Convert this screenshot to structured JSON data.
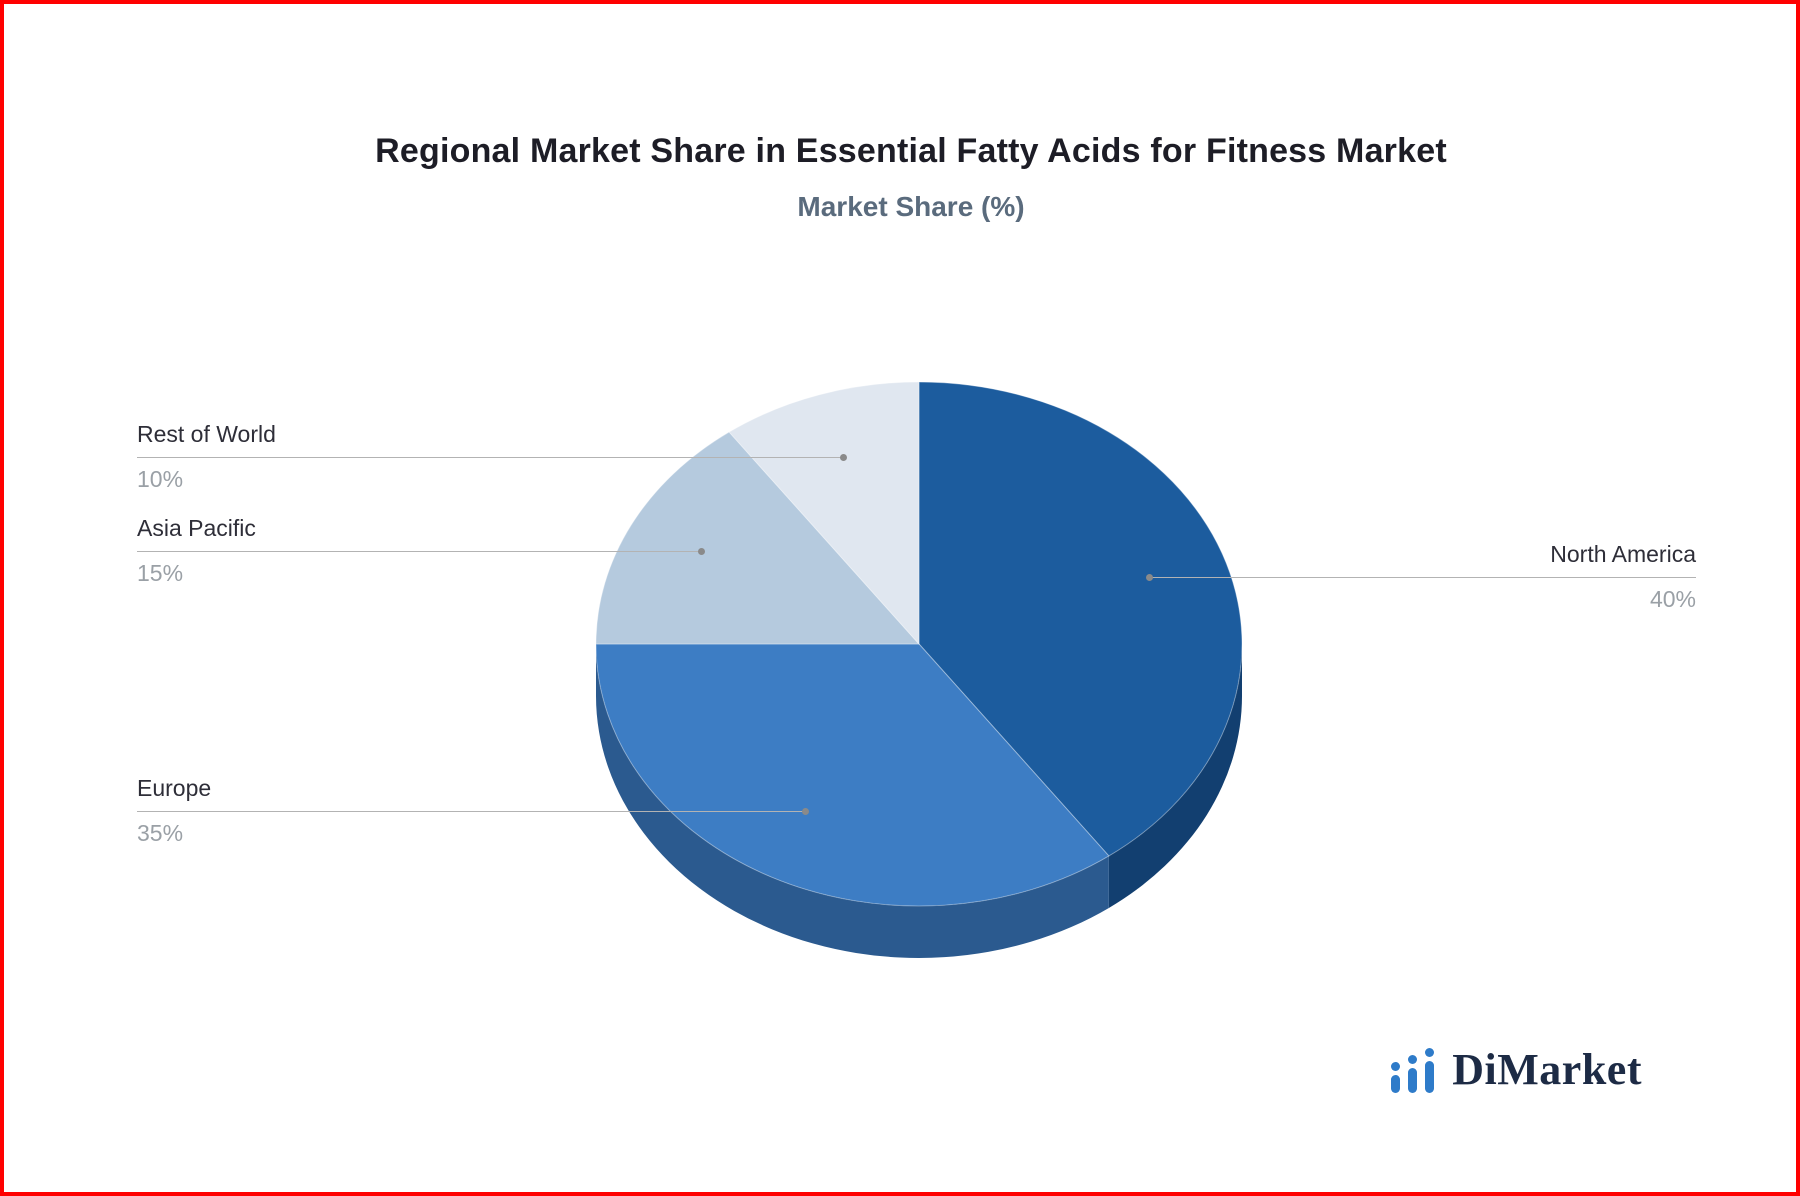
{
  "theme": {
    "accent_red": "#ff0000",
    "title_color": "#1d1d26",
    "subtitle_color": "#5a6b7d",
    "label_color": "#2e2e38",
    "pct_color": "#9aa0a6",
    "line_color": "#b3b3b3",
    "dot_color": "#8a8a8a",
    "background": "#ffffff",
    "logo_blue": "#2e7bc9",
    "logo_text_color": "#1d2b45"
  },
  "chart_data": {
    "type": "pie",
    "title": "Regional Market Share in Essential Fatty Acids for Fitness Market",
    "subtitle": "Market Share (%)",
    "unit": "%",
    "direction": "clockwise",
    "start_angle": "top",
    "style": "3d-depth",
    "legend_position": "none",
    "label_style": "leader-lines",
    "slices": [
      {
        "label": "North America",
        "value": 40,
        "pct_label": "40%",
        "color": "#1c5c9e",
        "side_color": "#123f70"
      },
      {
        "label": "Europe",
        "value": 35,
        "pct_label": "35%",
        "color": "#3d7dc4",
        "side_color": "#2b5a8f"
      },
      {
        "label": "Asia Pacific",
        "value": 15,
        "pct_label": "15%",
        "color": "#b5cade",
        "side_color": "#8fa9c4"
      },
      {
        "label": "Rest of World",
        "value": 10,
        "pct_label": "10%",
        "color": "#e0e7f0",
        "side_color": "#b9c4d4"
      }
    ]
  },
  "logo": {
    "text": "DiMarket",
    "icon": "bar-chart-icon"
  }
}
